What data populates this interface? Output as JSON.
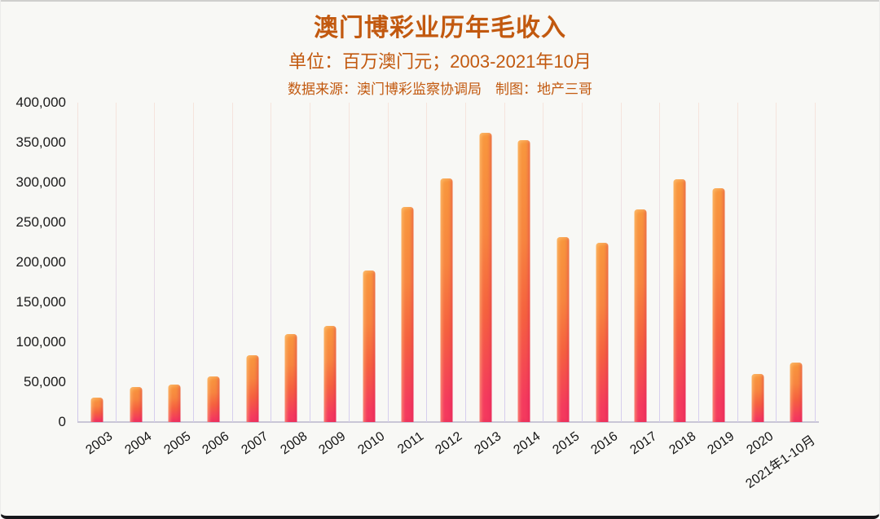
{
  "header": {
    "title": "澳门博彩业历年毛收入",
    "subtitle": "单位：百万澳门元；2003-2021年10月",
    "source": "数据来源：澳门博彩监察协调局　制图：地产三哥"
  },
  "colors": {
    "accent_text": "#c2590f",
    "bar_top": "#f8973d",
    "bar_bottom": "#f43a5e",
    "gridline_top": "#f6e4dc",
    "gridline_bottom": "#d5cdee",
    "axis_line": "#c9c6d6",
    "background": "#f8f8f5"
  },
  "chart_data": {
    "type": "bar",
    "title": "澳门博彩业历年毛收入",
    "unit": "百万澳门元",
    "period": "2003-2021年10月",
    "xlabel": "",
    "ylabel": "",
    "ylim": [
      0,
      400000
    ],
    "ytick_interval": 50000,
    "ytick_labels": [
      "400,000",
      "350,000",
      "300,000",
      "250,000",
      "200,000",
      "150,000",
      "100,000",
      "50,000",
      "0"
    ],
    "grid": "vertical-only",
    "legend": "none",
    "xlabel_rotation_deg": -35,
    "categories": [
      "2003",
      "2004",
      "2005",
      "2006",
      "2007",
      "2008",
      "2009",
      "2010",
      "2011",
      "2012",
      "2013",
      "2014",
      "2015",
      "2016",
      "2017",
      "2018",
      "2019",
      "2020",
      "2021年1-10月"
    ],
    "values": [
      30315,
      43511,
      47134,
      57521,
      83847,
      109826,
      120383,
      189588,
      269058,
      305235,
      361866,
      352714,
      231811,
      224210,
      266455,
      303879,
      293310,
      60441,
      74738
    ]
  }
}
